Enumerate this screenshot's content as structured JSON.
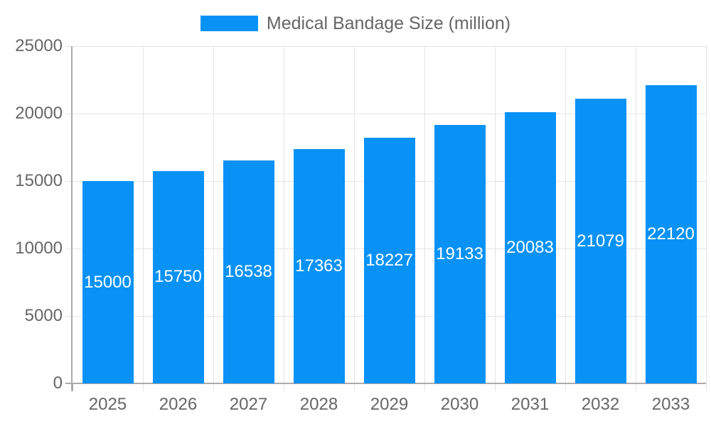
{
  "legend": {
    "title": "Medical Bandage Size (million)"
  },
  "chart_data": {
    "type": "bar",
    "title": "Medical Bandage Size (million)",
    "categories": [
      "2025",
      "2026",
      "2027",
      "2028",
      "2029",
      "2030",
      "2031",
      "2032",
      "2033"
    ],
    "series": [
      {
        "name": "Medical Bandage Size (million)",
        "values": [
          15000,
          15750,
          16538,
          17363,
          18227,
          19133,
          20083,
          21079,
          22120
        ]
      }
    ],
    "values": [
      15000,
      15750,
      16538,
      17363,
      18227,
      19133,
      20083,
      21079,
      22120
    ],
    "bar_labels": [
      "15000",
      "15750",
      "16538",
      "17363",
      "18227",
      "19133",
      "20083",
      "21079",
      "22120"
    ],
    "y_ticks": [
      0,
      5000,
      10000,
      15000,
      20000,
      25000
    ],
    "ylim": [
      0,
      25000
    ],
    "xlabel": "",
    "ylabel": "",
    "grid": true,
    "legend_position": "top",
    "colors": {
      "bar": "#0992F6",
      "bar_label": "#FFFFFF",
      "axis_text": "#666666",
      "axis_line": "#ABABAB",
      "gridline": "#E3E3E3",
      "background": "#FFFFFF"
    }
  }
}
